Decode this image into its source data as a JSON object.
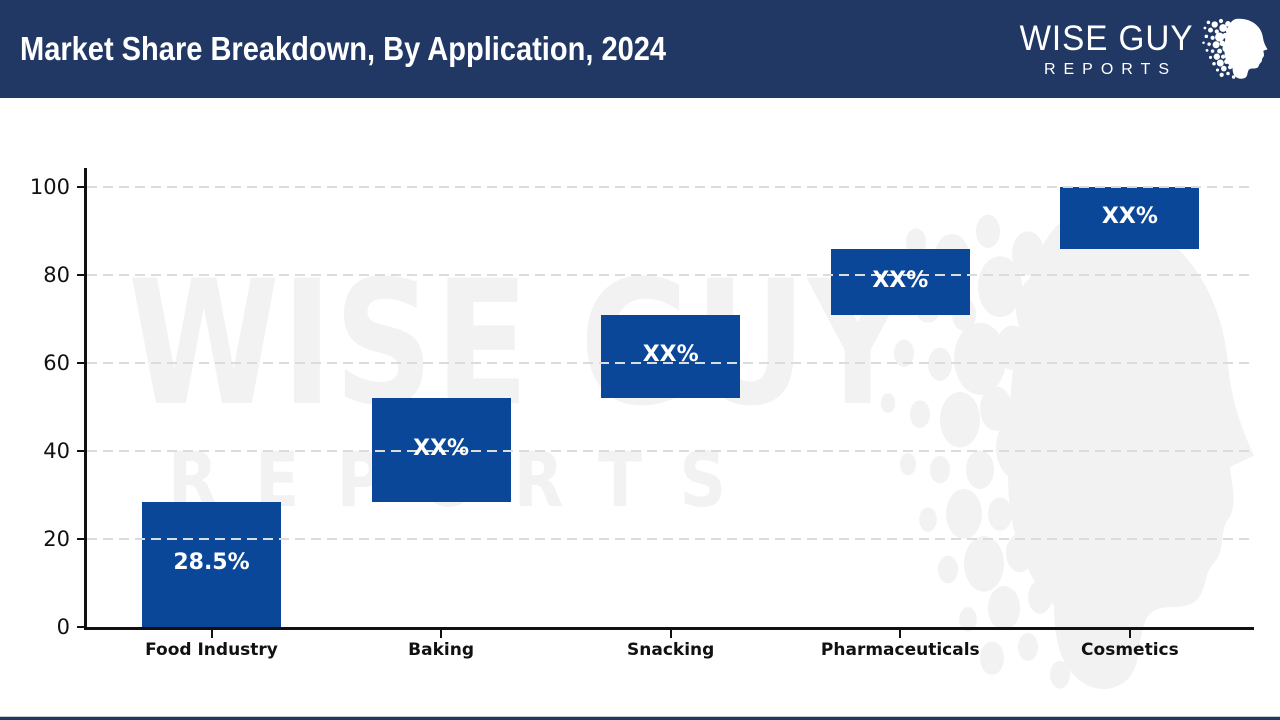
{
  "header": {
    "title": "Market Share Breakdown, By Application, 2024",
    "bg_color": "#213764",
    "logo": {
      "name": "WISE GUY",
      "subtitle": "REPORTS"
    }
  },
  "watermark": {
    "line1": "WISE GUY",
    "line2": "REPORTS"
  },
  "chart_data": {
    "type": "bar",
    "subtype": "waterfall",
    "title": "Market Share Breakdown, By Application, 2024",
    "categories": [
      "Food Industry",
      "Baking",
      "Snacking",
      "Pharmaceuticals",
      "Cosmetics"
    ],
    "segments": [
      {
        "category": "Food Industry",
        "start": 0,
        "end": 28.5,
        "value": 28.5,
        "label": "28.5%"
      },
      {
        "category": "Baking",
        "start": 28.5,
        "end": 52,
        "value": 23.5,
        "label": "XX%"
      },
      {
        "category": "Snacking",
        "start": 52,
        "end": 71,
        "value": 19,
        "label": "XX%"
      },
      {
        "category": "Pharmaceuticals",
        "start": 71,
        "end": 86,
        "value": 15,
        "label": "XX%"
      },
      {
        "category": "Cosmetics",
        "start": 86,
        "end": 100,
        "value": 14,
        "label": "XX%"
      }
    ],
    "yticks": [
      0,
      20,
      40,
      60,
      80,
      100
    ],
    "ylim": [
      0,
      105
    ],
    "xlabel": "",
    "ylabel": "",
    "bar_color": "#0b4798",
    "grid": "horizontal-dashed",
    "grid_color": "#dcdcdc",
    "legend": null
  }
}
